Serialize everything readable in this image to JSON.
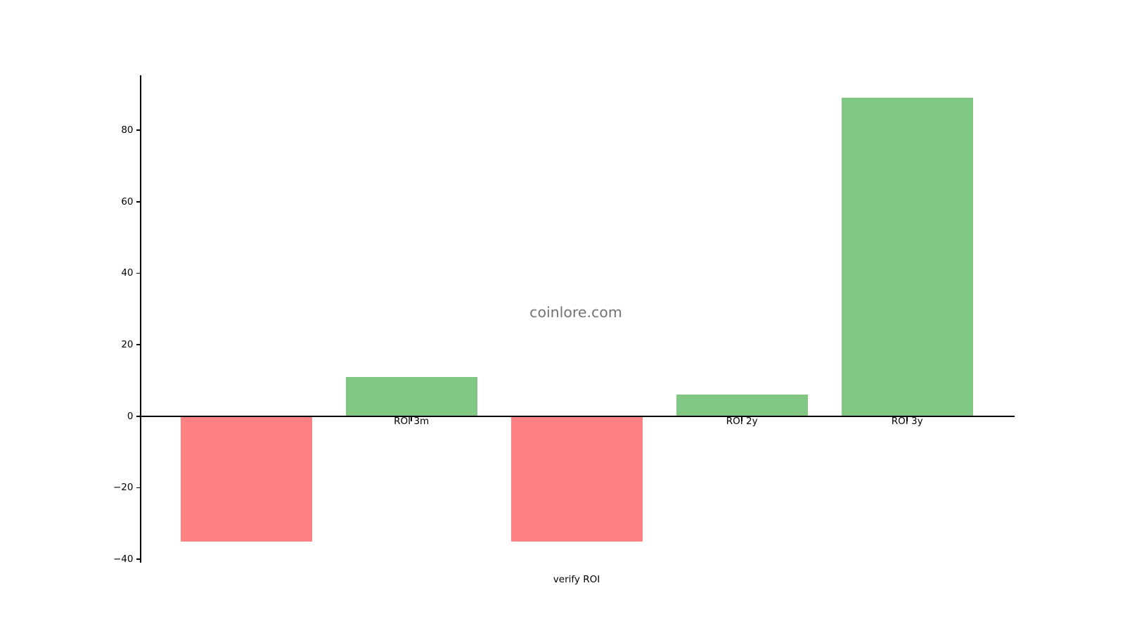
{
  "watermark": "coinlore.com",
  "xlabel": "verify ROI",
  "colors": {
    "positive": "#81c784",
    "negative": "#ff8181",
    "axis": "#000000",
    "watermark_text": "#737373",
    "background": "#ffffff"
  },
  "chart_data": {
    "type": "bar",
    "categories": [
      "",
      "ROI 3m",
      "",
      "ROI 2y",
      "ROI 3y"
    ],
    "values": [
      -35,
      11,
      -35,
      6,
      89
    ],
    "bar_colors": [
      "#ff8181",
      "#81c784",
      "#ff8181",
      "#81c784",
      "#81c784"
    ],
    "yticks": [
      80,
      60,
      40,
      20,
      0,
      -20,
      -40
    ],
    "ytick_labels": [
      "80",
      "60",
      "40",
      "20",
      "0",
      "−20",
      "−40"
    ],
    "ylim": [
      -41,
      95
    ],
    "title": "",
    "xlabel": "verify ROI",
    "ylabel": "",
    "grid": false,
    "legend_position": "none",
    "watermark": "coinlore.com"
  }
}
